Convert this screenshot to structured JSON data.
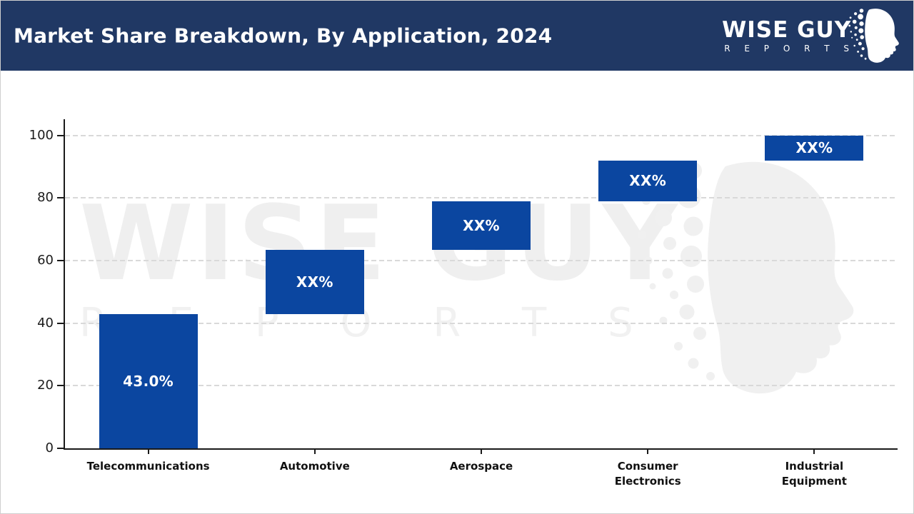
{
  "header": {
    "title": "Market Share Breakdown, By Application, 2024",
    "logo": {
      "line1": "WISE GUY",
      "line2": "R E P O R T S"
    }
  },
  "watermark": {
    "line1": "WISE GUY",
    "line2": "R E P O R T S"
  },
  "colors": {
    "header_bg": "#203864",
    "bar": "#0b46a0",
    "bar_label": "#ffffff",
    "axis": "#1a1a1a",
    "grid": "#d9d9d9",
    "watermark": "#efefef",
    "title_text": "#ffffff"
  },
  "chart_data": {
    "type": "bar",
    "subtype": "waterfall",
    "title": "Market Share Breakdown, By Application, 2024",
    "categories": [
      "Telecommunications",
      "Automotive",
      "Aerospace",
      "Consumer\nElectronics",
      "Industrial\nEquipment"
    ],
    "bars": [
      {
        "category": "Telecommunications",
        "start": 0,
        "end": 43,
        "label": "43.0%"
      },
      {
        "category": "Automotive",
        "start": 43,
        "end": 63.5,
        "label": "XX%"
      },
      {
        "category": "Aerospace",
        "start": 63.5,
        "end": 79,
        "label": "XX%"
      },
      {
        "category": "Consumer Electronics",
        "start": 79,
        "end": 92,
        "label": "XX%"
      },
      {
        "category": "Industrial Equipment",
        "start": 92,
        "end": 100,
        "label": "XX%"
      }
    ],
    "ylim": [
      0,
      105.2
    ],
    "yticks": [
      0,
      20,
      40,
      60,
      80,
      100
    ],
    "xlabel": "",
    "ylabel": "",
    "grid": "dashed-horizontal",
    "legend": null
  }
}
